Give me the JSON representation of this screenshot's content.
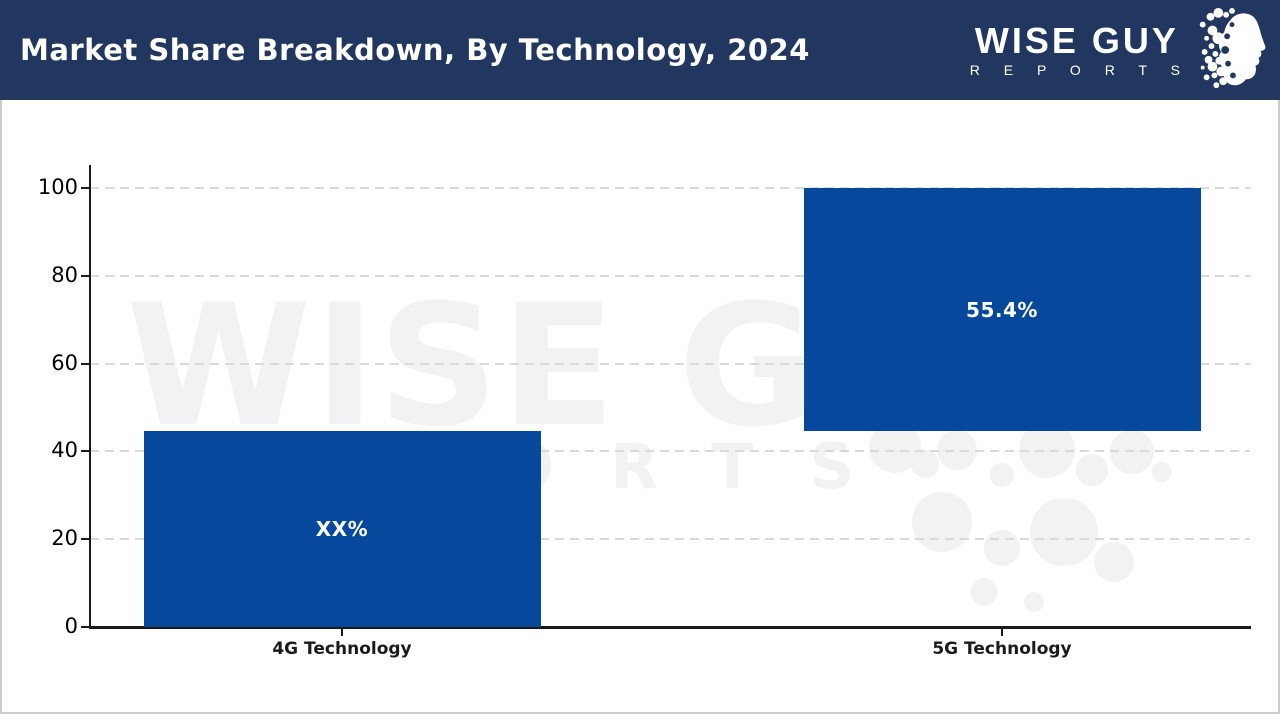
{
  "header": {
    "title": "Market Share Breakdown, By Technology, 2024",
    "bg_color": "#21375f",
    "logo": {
      "line1": "WISE GUY",
      "line2": "R E P O R T S"
    }
  },
  "watermark": {
    "line1": "WISE GUY",
    "line2": "REPORTS"
  },
  "chart_data": {
    "type": "bar",
    "subtype": "waterfall-share",
    "title": "Market Share Breakdown, By Technology, 2024",
    "categories": [
      "4G Technology",
      "5G Technology"
    ],
    "series": [
      {
        "name": "Market share",
        "values": [
          44.6,
          55.4
        ]
      }
    ],
    "bar_segments": [
      {
        "category": "4G Technology",
        "start": 0,
        "end": 44.6,
        "label": "XX%"
      },
      {
        "category": "5G Technology",
        "start": 44.6,
        "end": 100,
        "label": "55.4%"
      }
    ],
    "xlabel": "",
    "ylabel": "",
    "ylim": [
      0,
      100
    ],
    "yticks": [
      0,
      20,
      40,
      60,
      80,
      100
    ],
    "grid": "horizontal-dashed",
    "legend": "none",
    "bar_color": "#05489c",
    "bar_label_color": "#ffffff"
  }
}
